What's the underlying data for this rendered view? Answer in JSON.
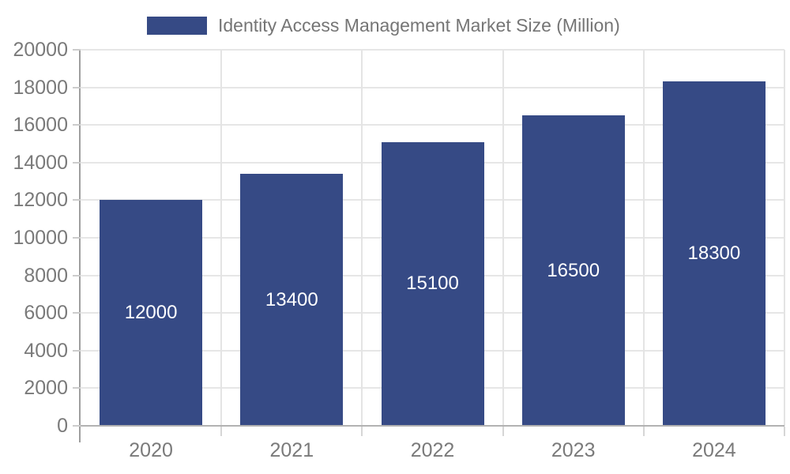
{
  "legend": {
    "label": "Identity Access Management Market Size (Million)"
  },
  "chart_data": {
    "type": "bar",
    "title": "Identity Access Management Market Size (Million)",
    "categories": [
      "2020",
      "2021",
      "2022",
      "2023",
      "2024"
    ],
    "values": [
      12000,
      13400,
      15100,
      16500,
      18300
    ],
    "value_labels": [
      "12000",
      "13400",
      "15100",
      "16500",
      "18300"
    ],
    "xlabel": "",
    "ylabel": "",
    "ylim": [
      0,
      20000
    ],
    "ytick_step": 2000,
    "y_tick_labels": [
      "0",
      "2000",
      "4000",
      "6000",
      "8000",
      "10000",
      "12000",
      "14000",
      "16000",
      "18000",
      "20000"
    ],
    "grid": true,
    "legend_position": "top",
    "value_labels_inside": true,
    "colors": {
      "bar": "#364a85",
      "value_label": "#ffffff",
      "tick_label": "#7a7a7a",
      "legend_label": "#757575",
      "gridline_h": "#e6e6e6",
      "gridline_v": "#e4e4e4",
      "axis_y": "#9e9e9e",
      "axis_x": "#b2b2b2",
      "tick_y": "#cccccc",
      "tick_x": "#d6d6d6",
      "background": "#ffffff"
    }
  }
}
